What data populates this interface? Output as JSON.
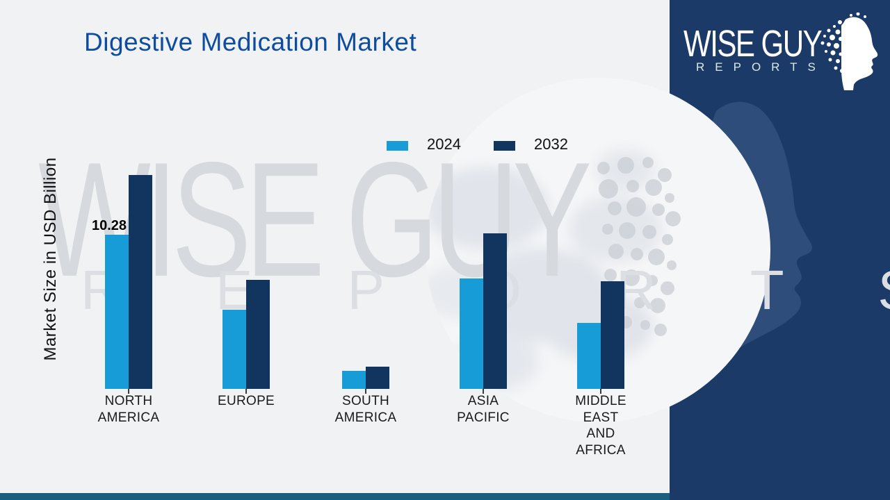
{
  "title": "Digestive Medication Market",
  "ylabel": "Market Size in USD Billion",
  "legend": [
    {
      "label": "2024",
      "color": "#189cd8"
    },
    {
      "label": "2032",
      "color": "#123560"
    }
  ],
  "annotation": {
    "text": "10.28"
  },
  "watermark": {
    "line1": "WISE GUY",
    "line2": "R E P O R T S"
  },
  "logo": {
    "line1": "WISE GUY",
    "line2": "REPORTS"
  },
  "colors": {
    "background": "#f1f2f3",
    "panel": "#1c3a67",
    "face_silhouette": "#2f4d7a",
    "circle": "#f5f6f8",
    "series_2024": "#189cd8",
    "series_2032": "#123560",
    "bottom_bar": "#1b5e80",
    "title": "#0d4c9e"
  },
  "chart_data": {
    "type": "bar",
    "title": "Digestive Medication Market",
    "ylabel": "Market Size in USD Billion",
    "categories": [
      "NORTH AMERICA",
      "EUROPE",
      "SOUTH AMERICA",
      "ASIA PACIFIC",
      "MIDDLE EAST AND AFRICA"
    ],
    "categories_display": [
      "NORTH\nAMERICA",
      "EUROPE",
      "SOUTH\nAMERICA",
      "ASIA\nPACIFIC",
      "MIDDLE\nEAST\nAND\nAFRICA"
    ],
    "series": [
      {
        "name": "2024",
        "values": [
          10.28,
          5.3,
          1.2,
          7.4,
          4.4
        ]
      },
      {
        "name": "2032",
        "values": [
          14.3,
          7.3,
          1.5,
          10.4,
          7.2
        ]
      }
    ],
    "colors": {
      "2024": "#189cd8",
      "2032": "#123560"
    },
    "data_labels": [
      {
        "series": "2024",
        "category": "NORTH AMERICA",
        "text": "10.28"
      }
    ],
    "ylim": [
      0,
      15
    ],
    "grid": false,
    "y_axis_ticks_visible": false,
    "legend_position": "top-center"
  }
}
